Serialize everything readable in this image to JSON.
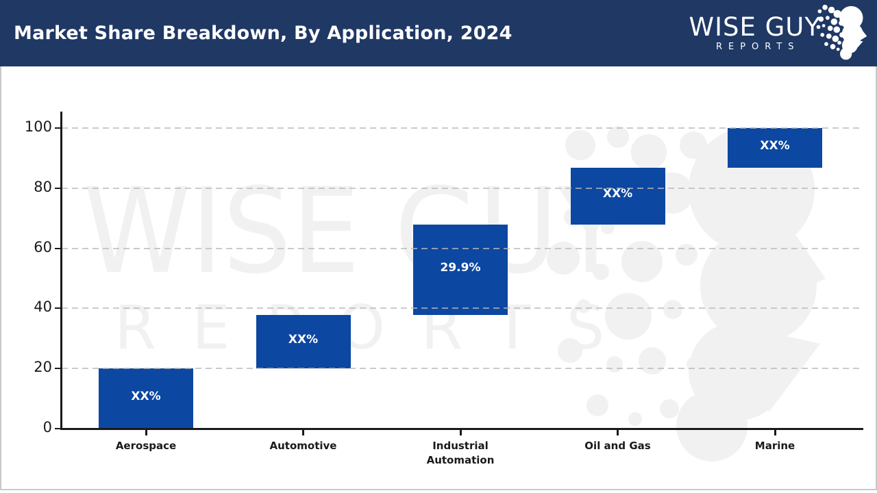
{
  "header": {
    "title": "Market Share Breakdown, By Application, 2024",
    "background_color": "#1f3864",
    "logo": {
      "line1": "WISE GUY",
      "line2": "REPORTS"
    }
  },
  "watermark": {
    "line1": "WISE GUY",
    "line2": "REPORTS"
  },
  "chart_data": {
    "type": "bar",
    "subtype": "waterfall",
    "title": "Market Share Breakdown, By Application, 2024",
    "categories": [
      "Aerospace",
      "Automotive",
      "Industrial Automation",
      "Oil and Gas",
      "Marine"
    ],
    "segments": [
      [
        0,
        20
      ],
      [
        20,
        37.8
      ],
      [
        37.8,
        67.9
      ],
      [
        67.9,
        86.8
      ],
      [
        86.8,
        100
      ]
    ],
    "values": [
      20,
      17.8,
      29.9,
      18.9,
      13.2
    ],
    "labels": [
      "XX%",
      "XX%",
      "29.9%",
      "XX%",
      "XX%"
    ],
    "y_ticks": [
      0,
      20,
      40,
      60,
      80,
      100
    ],
    "ylim": [
      0,
      100
    ],
    "xlabel": "",
    "ylabel": "",
    "grid": "horizontal-dashed",
    "legend": "none",
    "bar_color": "#0c47a1",
    "bar_label_color": "#ffffff",
    "axis_color": "#1a1a1a"
  }
}
